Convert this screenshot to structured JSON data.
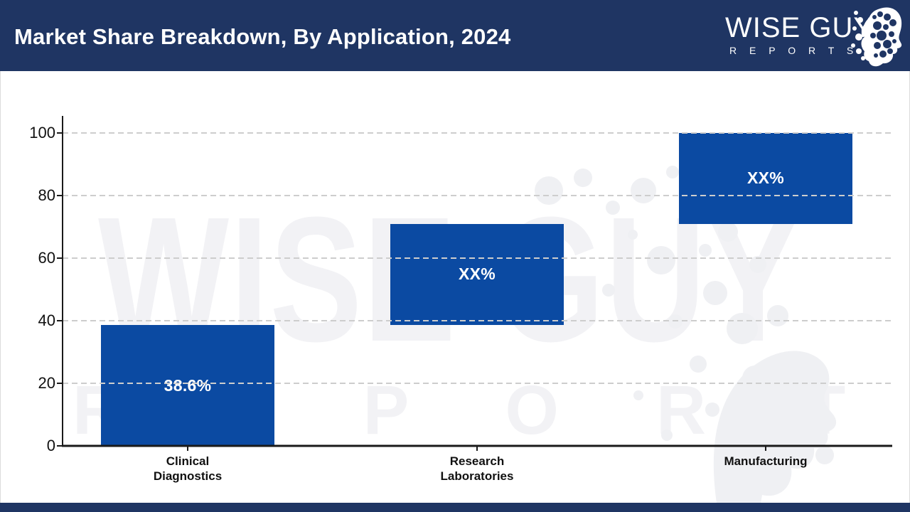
{
  "header": {
    "title": "Market Share Breakdown, By Application, 2024",
    "logo": {
      "brand_line1": "WISE GUY",
      "brand_line2": "R E P O R T S"
    }
  },
  "watermark": {
    "line1": "WISE GUY",
    "line2": "R E P O R T S"
  },
  "colors": {
    "header_bg": "#1F3563",
    "bar": "#0B4AA2",
    "grid": "#CDCDCD",
    "axis": "#1A1A1A",
    "bar_label": "#FFFFFF",
    "tick_text": "#111111",
    "watermark": "#F2F2F5"
  },
  "chart_data": {
    "type": "bar",
    "subtype": "waterfall-stacked-percent",
    "title": "Market Share Breakdown, By Application, 2024",
    "categories": [
      "Clinical Diagnostics",
      "Research Laboratories",
      "Manufacturing"
    ],
    "category_lines": [
      [
        "Clinical",
        "Diagnostics"
      ],
      [
        "Research",
        "Laboratories"
      ],
      [
        "Manufacturing"
      ]
    ],
    "series": [
      {
        "name": "Clinical Diagnostics",
        "start": 0,
        "end": 38.6,
        "label": "38.6%"
      },
      {
        "name": "Research Laboratories",
        "start": 38.6,
        "end": 71,
        "label": "XX%"
      },
      {
        "name": "Manufacturing",
        "start": 71,
        "end": 100,
        "label": "XX%"
      }
    ],
    "xlabel": "",
    "ylabel": "",
    "ylim": [
      0,
      100
    ],
    "yticks": [
      0,
      20,
      40,
      60,
      80,
      100
    ],
    "grid": "horizontal-dashed-over-bars",
    "legend": "none",
    "bar_color": "#0B4AA2"
  }
}
